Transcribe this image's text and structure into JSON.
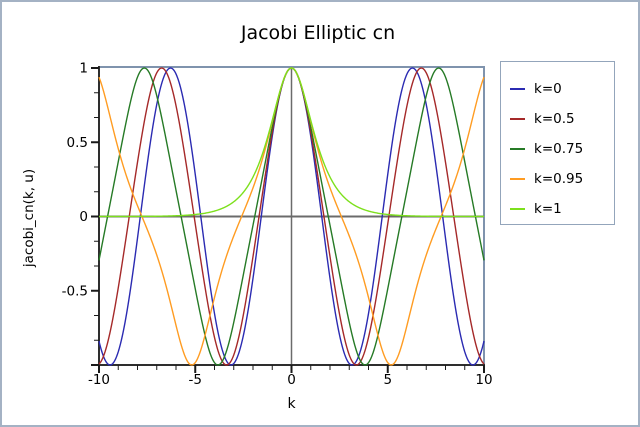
{
  "figure": {
    "background": "#ffffff",
    "border_color": "#a4b2c4"
  },
  "chart_data": {
    "type": "line",
    "title": "Jacobi Elliptic cn",
    "xlabel": "k",
    "ylabel": "jacobi_cn(k, u)",
    "xlim": [
      -10,
      10
    ],
    "ylim": [
      -1,
      1
    ],
    "grid": false,
    "x_major_ticks": [
      -10,
      -5,
      0,
      5,
      10
    ],
    "x_tick_labels": [
      "-10",
      "-5",
      "0",
      "5",
      "10"
    ],
    "x_minor_step": 1,
    "y_major_ticks": [
      1,
      0.5,
      0,
      -0.5,
      -1
    ],
    "y_labeled_values": [
      1,
      0.5,
      0,
      -0.5
    ],
    "y_tick_labels": [
      "1",
      "0.5",
      "0",
      "-0.5"
    ],
    "y_minor_divisions": 3,
    "legend_position": "outside-upper-right",
    "function": "y = jacobi_cn(u, k), the Jacobi elliptic cosine of argument u (horizontal axis, -10..10) with modulus k; cn(u,0)=cos(u) period 2pi, cn(u,1)=sech(u); periods 4K(k) approx 6.28, 6.74, 7.64, 10.36 for k=0,0.5,0.75,0.95",
    "series": [
      {
        "label": "k=0",
        "k": 0,
        "color": "#2b2bb2"
      },
      {
        "label": "k=0.5",
        "k": 0.5,
        "color": "#a52929"
      },
      {
        "label": "k=0.75",
        "k": 0.75,
        "color": "#267a26"
      },
      {
        "label": "k=0.95",
        "k": 0.95,
        "color": "#ff9c22"
      },
      {
        "label": "k=1",
        "k": 1,
        "color": "#7de01d"
      }
    ]
  },
  "style": {
    "frame_color": "#7f93ad",
    "axis_color": "#2e2e2e",
    "origin_line_color": "#6b6b6b",
    "tick_color": "#1a1a1a",
    "text_color": "#000000",
    "legend_border_color": "#93a5bb",
    "legend_background": "#ffffff"
  }
}
